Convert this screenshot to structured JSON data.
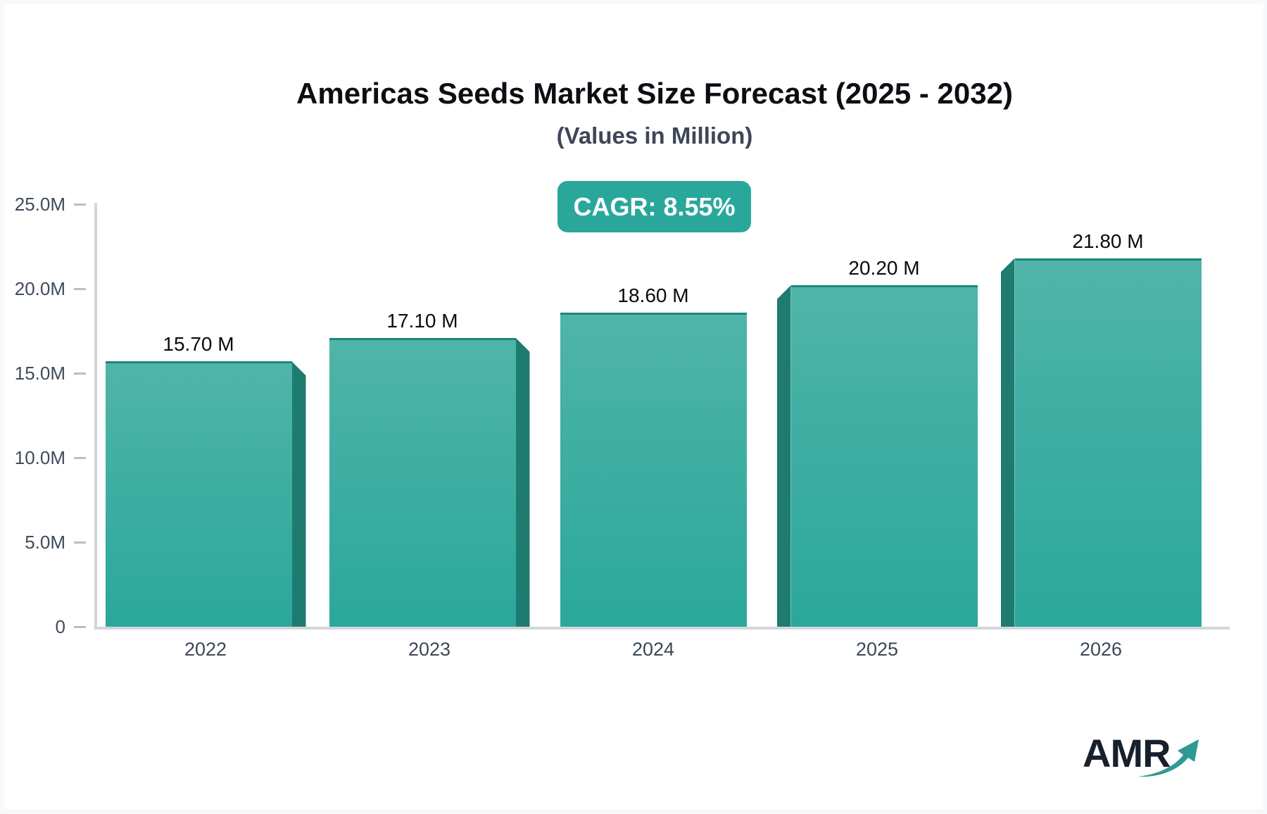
{
  "page": {
    "title": "Americas Seeds Market Size Forecast (2025 - 2032)",
    "subtitle": "(Values in Million)",
    "cagr_label": "CAGR: 8.55%",
    "logo_text": "AMR"
  },
  "colors": {
    "badge_bg": "#2aa79b",
    "bar_top": "#50b4a9",
    "bar_bottom": "#2aa89a",
    "bar_edge": "#1a877c",
    "bar_side": "#1e7b70",
    "axis_line": "#d2d6db",
    "tick_text": "#3f4c5a",
    "value_text": "#0b0b0b",
    "logo_text": "#17212b",
    "logo_arrow": "#2d9a93"
  },
  "chart_data": {
    "type": "bar",
    "title": "Americas Seeds Market Size Forecast (2025 - 2032)",
    "subtitle": "(Values in Million)",
    "cagr": "8.55%",
    "categories": [
      "2022",
      "2023",
      "2024",
      "2025",
      "2026"
    ],
    "values": [
      15.7,
      17.1,
      18.6,
      20.2,
      21.8
    ],
    "value_labels": [
      "15.70 M",
      "17.10 M",
      "18.60 M",
      "20.20 M",
      "21.80 M"
    ],
    "unit": "Million",
    "xlabel": "",
    "ylabel": "",
    "ylim": [
      0,
      25
    ],
    "ytick_interval": 5,
    "yticks": [
      "0",
      "5.0M",
      "10.0M",
      "15.0M",
      "20.0M",
      "25.0M"
    ],
    "grid": false,
    "legend_position": "none",
    "bevel_sides": [
      "right",
      "right",
      "none",
      "left",
      "left"
    ]
  }
}
